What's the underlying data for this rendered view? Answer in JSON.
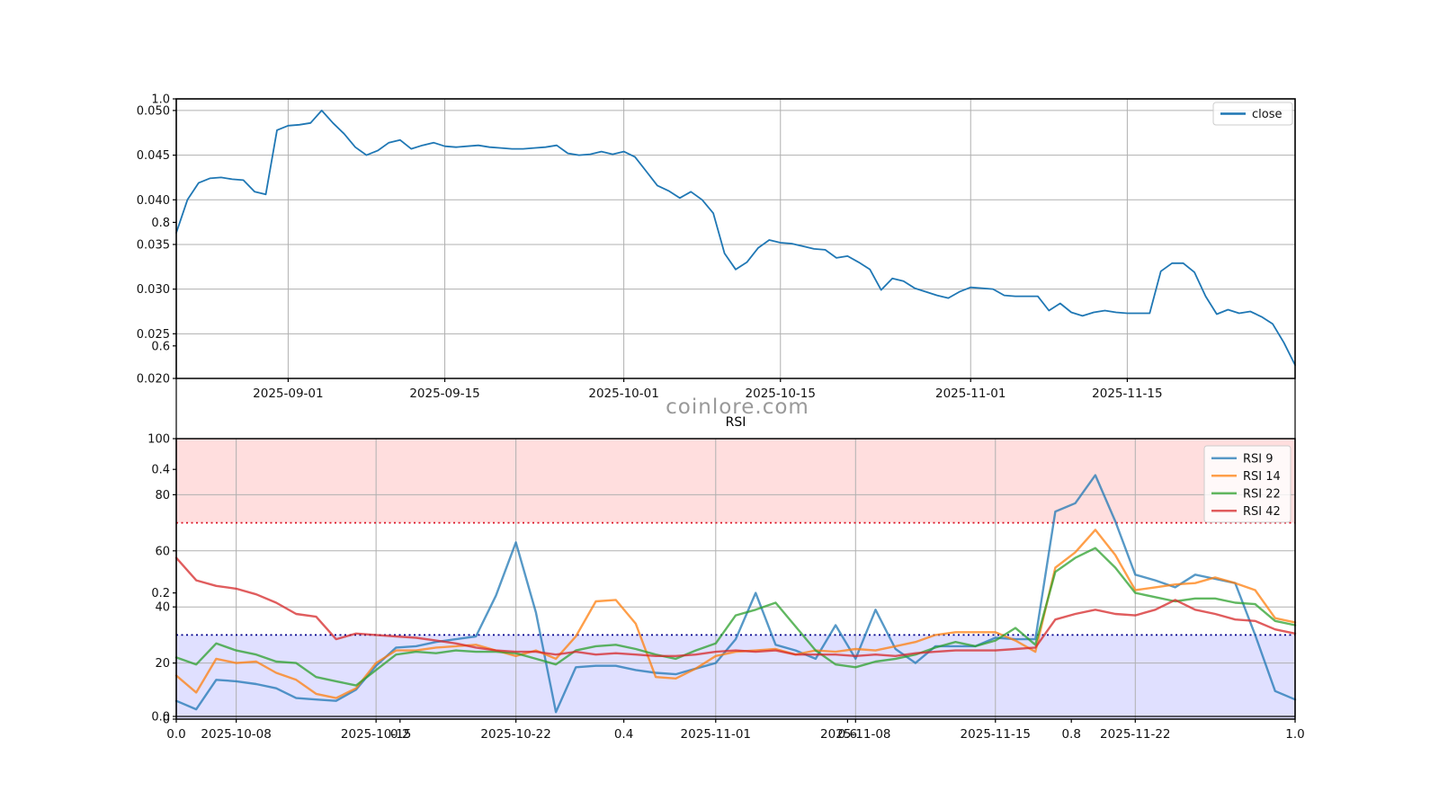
{
  "watermark": {
    "text": "coinlore.com",
    "color": "#999999"
  },
  "rsi_title": "RSI",
  "colors": {
    "close": "#1f77b4",
    "rsi9": "#1f77b4",
    "rsi14": "#ff7f0e",
    "rsi22": "#2ca02c",
    "rsi42": "#d62728",
    "grid": "#b0b0b0",
    "spine": "#000000",
    "overbought_line": "#dc1426",
    "oversold_line": "#00008b",
    "overbought_band": "rgba(255,0,0,0.13)",
    "oversold_band": "rgba(0,0,255,0.12)"
  },
  "overlay_axis": {
    "y_tick_labels": [
      "1.0",
      "0.8",
      "0.6",
      "0.4",
      "0.2",
      "0.0"
    ],
    "x_tick_labels": [
      "0.0",
      "0.2",
      "0.4",
      "0.6",
      "0.8",
      "1.0"
    ]
  },
  "chart_data": [
    {
      "id": "price",
      "type": "line",
      "title": "",
      "ylim": [
        0.02,
        0.0513
      ],
      "y_ticks": [
        {
          "label": "0.050",
          "v": 0.05
        },
        {
          "label": "0.045",
          "v": 0.045
        },
        {
          "label": "0.040",
          "v": 0.04
        },
        {
          "label": "0.035",
          "v": 0.035
        },
        {
          "label": "0.030",
          "v": 0.03
        },
        {
          "label": "0.025",
          "v": 0.025
        },
        {
          "label": "0.020",
          "v": 0.02
        }
      ],
      "x_ticks": [
        {
          "label": "2025-09-01",
          "i": 10
        },
        {
          "label": "2025-09-15",
          "i": 24
        },
        {
          "label": "2025-10-01",
          "i": 40
        },
        {
          "label": "2025-10-15",
          "i": 54
        },
        {
          "label": "2025-11-01",
          "i": 71
        },
        {
          "label": "2025-11-15",
          "i": 85
        }
      ],
      "legend": {
        "position": "upper-right",
        "entries": [
          {
            "label": "close",
            "color": "#1f77b4"
          }
        ]
      },
      "series": [
        {
          "name": "close",
          "color": "#1f77b4",
          "width": 1.8,
          "opacity": 1,
          "values": [
            0.0363,
            0.04,
            0.0419,
            0.0424,
            0.0425,
            0.0423,
            0.0422,
            0.0409,
            0.0406,
            0.0478,
            0.0483,
            0.0484,
            0.0486,
            0.05,
            0.0486,
            0.0474,
            0.0459,
            0.045,
            0.0455,
            0.0464,
            0.0467,
            0.0457,
            0.0461,
            0.0464,
            0.046,
            0.0459,
            0.046,
            0.0461,
            0.0459,
            0.0458,
            0.0457,
            0.0457,
            0.0458,
            0.0459,
            0.0461,
            0.0452,
            0.045,
            0.0451,
            0.0454,
            0.0451,
            0.0454,
            0.0448,
            0.0432,
            0.0416,
            0.041,
            0.0402,
            0.0409,
            0.04,
            0.0385,
            0.034,
            0.0322,
            0.033,
            0.0346,
            0.0355,
            0.0352,
            0.0351,
            0.0348,
            0.0345,
            0.0344,
            0.0335,
            0.0337,
            0.033,
            0.0322,
            0.0299,
            0.0312,
            0.0309,
            0.0301,
            0.0297,
            0.0293,
            0.029,
            0.0297,
            0.0302,
            0.0301,
            0.03,
            0.0293,
            0.0292,
            0.0292,
            0.0292,
            0.0276,
            0.0284,
            0.0274,
            0.027,
            0.0274,
            0.0276,
            0.0274,
            0.0273,
            0.0273,
            0.0273,
            0.032,
            0.0329,
            0.0329,
            0.0319,
            0.0292,
            0.0272,
            0.0277,
            0.0273,
            0.0275,
            0.0269,
            0.0261,
            0.024,
            0.0215
          ]
        }
      ]
    },
    {
      "id": "rsi",
      "type": "line",
      "title": "RSI",
      "ylim": [
        0,
        100
      ],
      "y_ticks": [
        {
          "label": "100",
          "v": 100
        },
        {
          "label": "80",
          "v": 80
        },
        {
          "label": "60",
          "v": 60
        },
        {
          "label": "40",
          "v": 40
        },
        {
          "label": "20",
          "v": 20
        },
        {
          "label": "0",
          "v": 0
        }
      ],
      "x_ticks": [
        {
          "label": "2025-10-08",
          "i": 3
        },
        {
          "label": "2025-10-15",
          "i": 10
        },
        {
          "label": "2025-10-22",
          "i": 17
        },
        {
          "label": "2025-11-01",
          "i": 27
        },
        {
          "label": "2025-11-08",
          "i": 34
        },
        {
          "label": "2025-11-15",
          "i": 41
        },
        {
          "label": "2025-11-22",
          "i": 48
        }
      ],
      "hlines": [
        {
          "value": 70,
          "color": "#dc1426",
          "style": "dotted"
        },
        {
          "value": 30,
          "color": "#00008b",
          "style": "dotted"
        }
      ],
      "bands": [
        {
          "from": 70,
          "to": 100,
          "color": "rgba(255,0,0,0.13)"
        },
        {
          "from": 0,
          "to": 30,
          "color": "rgba(0,0,255,0.12)"
        }
      ],
      "legend": {
        "position": "upper-right",
        "entries": [
          {
            "label": "RSI 9",
            "color": "#1f77b4"
          },
          {
            "label": "RSI 14",
            "color": "#ff7f0e"
          },
          {
            "label": "RSI 22",
            "color": "#2ca02c"
          },
          {
            "label": "RSI 42",
            "color": "#d62728"
          }
        ]
      },
      "series": [
        {
          "name": "RSI 9",
          "color": "#1f77b4",
          "width": 2.4,
          "opacity": 0.75,
          "values": [
            6.5,
            3.5,
            14,
            13.5,
            12.5,
            11,
            7.5,
            7,
            6.5,
            10.5,
            19,
            25.5,
            26,
            27.5,
            28.5,
            29.5,
            44,
            63,
            38,
            2.5,
            18.5,
            19,
            19,
            17.5,
            16.5,
            16,
            18,
            20,
            28.5,
            45,
            26.5,
            24.5,
            21.5,
            33.5,
            21.5,
            39,
            25,
            20,
            26,
            26,
            26,
            29,
            28.5,
            28.5,
            74,
            77,
            87,
            70.5,
            51.5,
            49.5,
            47,
            51.5,
            50,
            48.5,
            30,
            10,
            7
          ]
        },
        {
          "name": "RSI 14",
          "color": "#ff7f0e",
          "width": 2.4,
          "opacity": 0.75,
          "values": [
            15.5,
            9.5,
            21.5,
            20,
            20.5,
            16.5,
            14,
            9,
            7.5,
            11,
            20,
            24.5,
            24.5,
            25.5,
            26,
            26.5,
            24.5,
            22.5,
            24.5,
            21.5,
            29.5,
            42,
            42.5,
            34,
            15,
            14.5,
            18,
            22.5,
            24,
            24.5,
            25,
            23,
            24.5,
            24,
            25,
            24.5,
            26,
            27.5,
            30,
            31,
            31,
            31,
            28,
            24,
            54,
            59.5,
            67.5,
            58.5,
            46,
            47,
            48,
            48.5,
            50.5,
            48.5,
            46,
            36,
            34.5
          ]
        },
        {
          "name": "RSI 22",
          "color": "#2ca02c",
          "width": 2.4,
          "opacity": 0.75,
          "values": [
            22,
            19.5,
            27,
            24.5,
            23,
            20.5,
            20,
            15,
            13.5,
            12,
            17.5,
            23,
            24,
            23.5,
            24.5,
            24,
            24,
            23.5,
            21.5,
            19.5,
            24.5,
            26,
            26.5,
            25,
            23,
            21.5,
            24.5,
            27,
            37,
            39,
            41.5,
            33,
            24.5,
            19.5,
            18.5,
            20.5,
            21.5,
            23,
            25.5,
            27.5,
            26,
            28,
            32.5,
            26.5,
            52.5,
            57.5,
            61,
            54,
            45,
            43.5,
            42,
            43,
            43,
            41.5,
            41,
            35,
            33.5
          ]
        },
        {
          "name": "RSI 42",
          "color": "#d62728",
          "width": 2.4,
          "opacity": 0.75,
          "values": [
            57.5,
            49.5,
            47.5,
            46.5,
            44.5,
            41.5,
            37.5,
            36.5,
            28.5,
            30.5,
            30,
            29.5,
            29,
            28,
            27,
            25.5,
            24.5,
            24,
            24,
            23,
            24,
            23,
            23.5,
            23,
            22.5,
            22.5,
            23,
            24,
            24.5,
            24,
            24.5,
            23,
            23,
            23,
            22.5,
            23,
            22.5,
            23.5,
            24,
            24.5,
            24.5,
            24.5,
            25,
            25.5,
            35.5,
            37.5,
            39,
            37.5,
            37,
            39,
            42.5,
            39,
            37.5,
            35.5,
            35,
            32,
            30.5
          ]
        }
      ]
    }
  ]
}
